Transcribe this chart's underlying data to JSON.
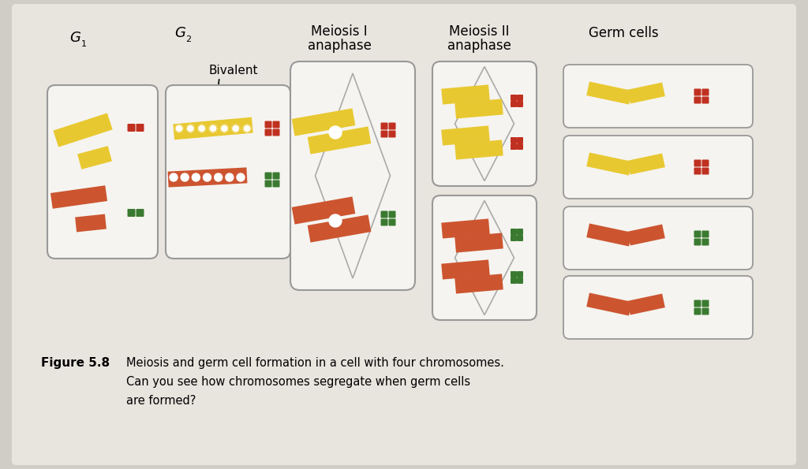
{
  "bg_color": "#d0ccc6",
  "cell_bg": "#f5f4f0",
  "cell_border": "#999999",
  "yellow_color": "#E8C830",
  "orange_color": "#CC5530",
  "green_color": "#3A7A30",
  "red_small_color": "#C03020",
  "caption_bold": "Figure 5.8",
  "caption_line1": "Meiosis and germ cell formation in a cell with four chromosomes.",
  "caption_line2": "Can you see how chromosomes segregate when germ cells",
  "caption_line3": "are formed?"
}
